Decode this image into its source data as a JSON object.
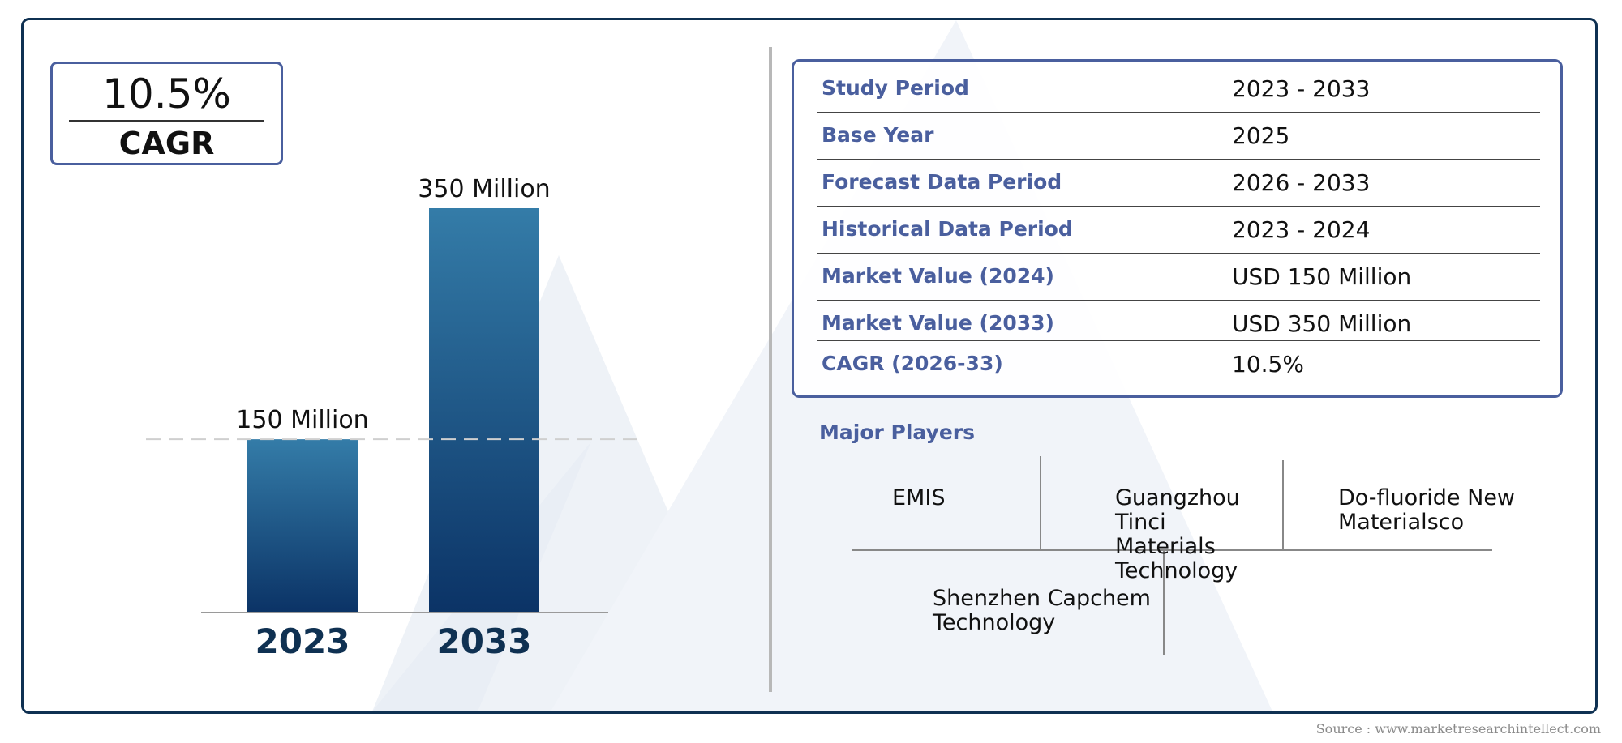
{
  "cagr_badge": {
    "value": "10.5%",
    "label": "CAGR"
  },
  "chart_data": {
    "type": "bar",
    "categories": [
      "2023",
      "2033"
    ],
    "values": [
      150,
      350
    ],
    "value_labels": [
      "150 Million",
      "350 Million"
    ],
    "ylim": [
      0,
      350
    ],
    "colors": {
      "bar_top": "#347ca8",
      "bar_bottom": "#0b3366",
      "category_label": "#0f3152"
    }
  },
  "info_table": {
    "rows": [
      {
        "label": "Study Period",
        "value": "2023 - 2033"
      },
      {
        "label": "Base Year",
        "value": "2025"
      },
      {
        "label": "Forecast Data Period",
        "value": "2026 - 2033"
      },
      {
        "label": "Historical Data Period",
        "value": "2023 - 2024"
      },
      {
        "label": "Market Value (2024)",
        "value": "USD 150 Million"
      },
      {
        "label": "Market Value (2033)",
        "value": "USD 350 Million"
      },
      {
        "label": "CAGR (2026-33)",
        "value": "10.5%"
      }
    ]
  },
  "major_players": {
    "title": "Major Players",
    "players": [
      "EMIS",
      "Guangzhou Tinci Materials Technology",
      "Do-fluoride New Materialsco",
      "Shenzhen Capchem Technology"
    ]
  },
  "source": "Source : www.marketresearchintellect.com",
  "colors": {
    "accent": "#4a5f9e",
    "frame": "#0f3152"
  }
}
